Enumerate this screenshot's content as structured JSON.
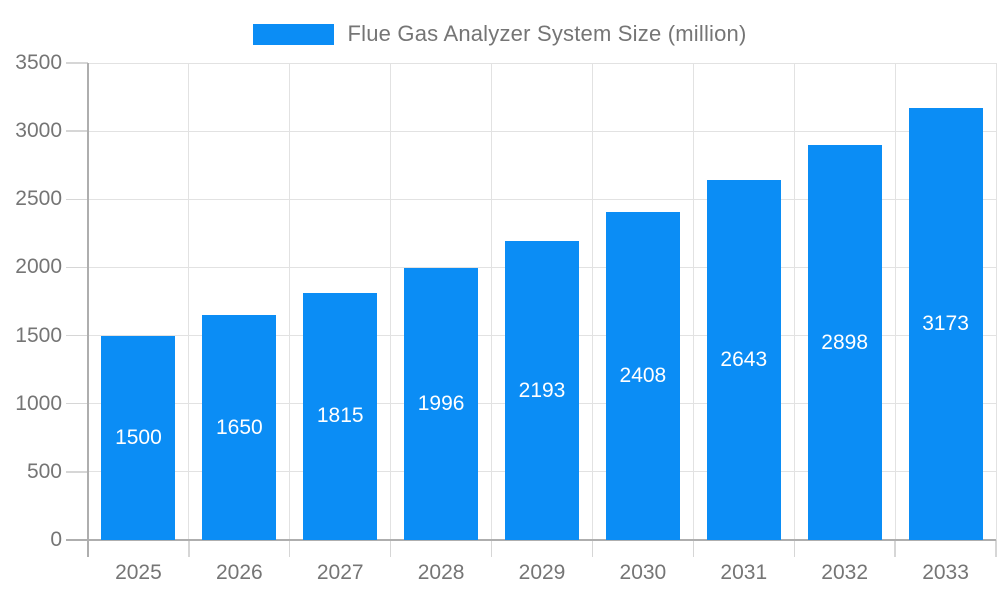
{
  "colors": {
    "bar": "#0b8df5",
    "bar_value_text": "#ffffff",
    "axis_text": "#757575",
    "legend_text": "#757575",
    "grid_line": "#e2e2e2",
    "tick_line": "#d6d6d6",
    "axis_line": "#aeaeae",
    "background": "#ffffff"
  },
  "legend": {
    "label": "Flue Gas Analyzer System Size (million)"
  },
  "chart_data": {
    "type": "bar",
    "title": "Flue Gas Analyzer System Size (million)",
    "categories": [
      "2025",
      "2026",
      "2027",
      "2028",
      "2029",
      "2030",
      "2031",
      "2032",
      "2033"
    ],
    "values": [
      1500,
      1650,
      1815,
      1996,
      2193,
      2408,
      2643,
      2898,
      3173
    ],
    "xlabel": "",
    "ylabel": "",
    "ylim": [
      0,
      3500
    ],
    "yticks": [
      0,
      500,
      1000,
      1500,
      2000,
      2500,
      3000,
      3500
    ],
    "grid": true,
    "legend_position": "top-center",
    "value_label_position": "inside-center"
  }
}
